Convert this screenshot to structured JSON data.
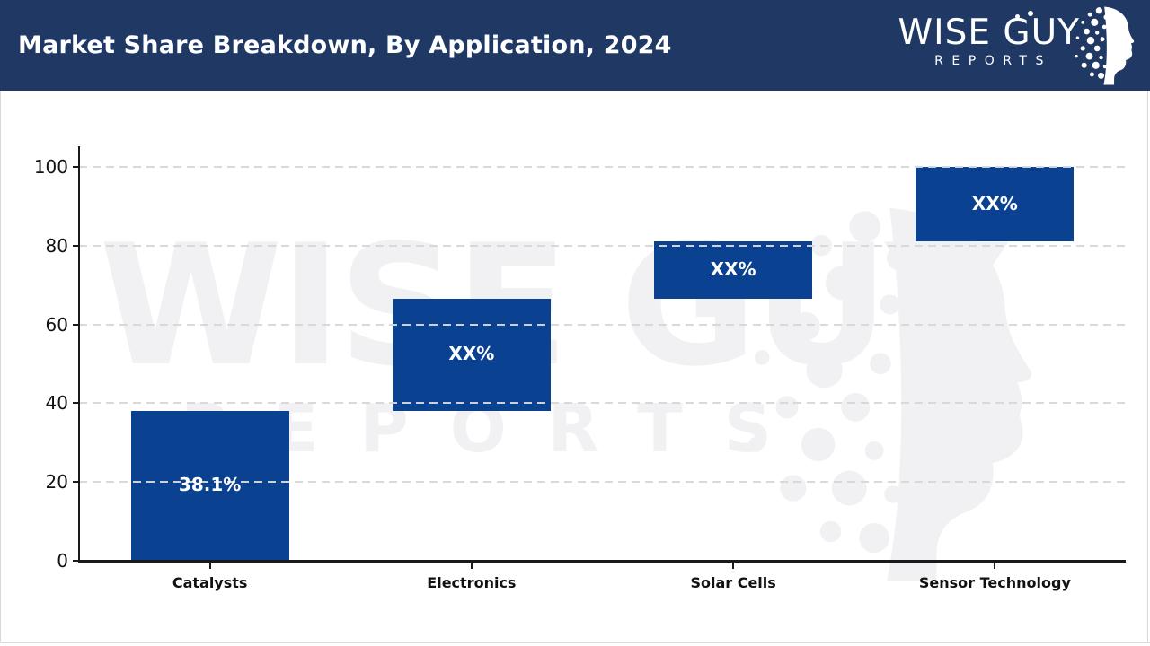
{
  "header": {
    "title": "Market Share Breakdown, By Application, 2024",
    "logo_line1": "WISE GUY",
    "logo_line2": "REPORTS"
  },
  "watermark": {
    "line1": "WISE GUY",
    "line2": "REPORTS"
  },
  "colors": {
    "header_background": "#1f3864",
    "bar_blue": "#0b4191",
    "gridline_gray": "#d7d7d7",
    "axis_black": "#1a1a1a",
    "watermark_gray": "#f1f1f3"
  },
  "chart_data": {
    "type": "bar",
    "subtype": "waterfall",
    "title": "Market Share Breakdown, By Application, 2024",
    "categories": [
      "Catalysts",
      "Electronics",
      "Solar Cells",
      "Sensor Technology"
    ],
    "segments": [
      {
        "category": "Catalysts",
        "start": 0,
        "end": 38.1,
        "label": "38.1%"
      },
      {
        "category": "Electronics",
        "start": 38.1,
        "end": 66.5,
        "label": "XX%"
      },
      {
        "category": "Solar Cells",
        "start": 66.5,
        "end": 81,
        "label": "XX%"
      },
      {
        "category": "Sensor Technology",
        "start": 81,
        "end": 100,
        "label": "XX%"
      }
    ],
    "xlabel": "",
    "ylabel": "",
    "yticks": [
      0,
      20,
      40,
      60,
      80,
      100
    ],
    "ylim": [
      0,
      105
    ],
    "grid": "horizontal-dashed",
    "legend": null,
    "bar_color": "#0b4191",
    "label_color": "#ffffff"
  }
}
